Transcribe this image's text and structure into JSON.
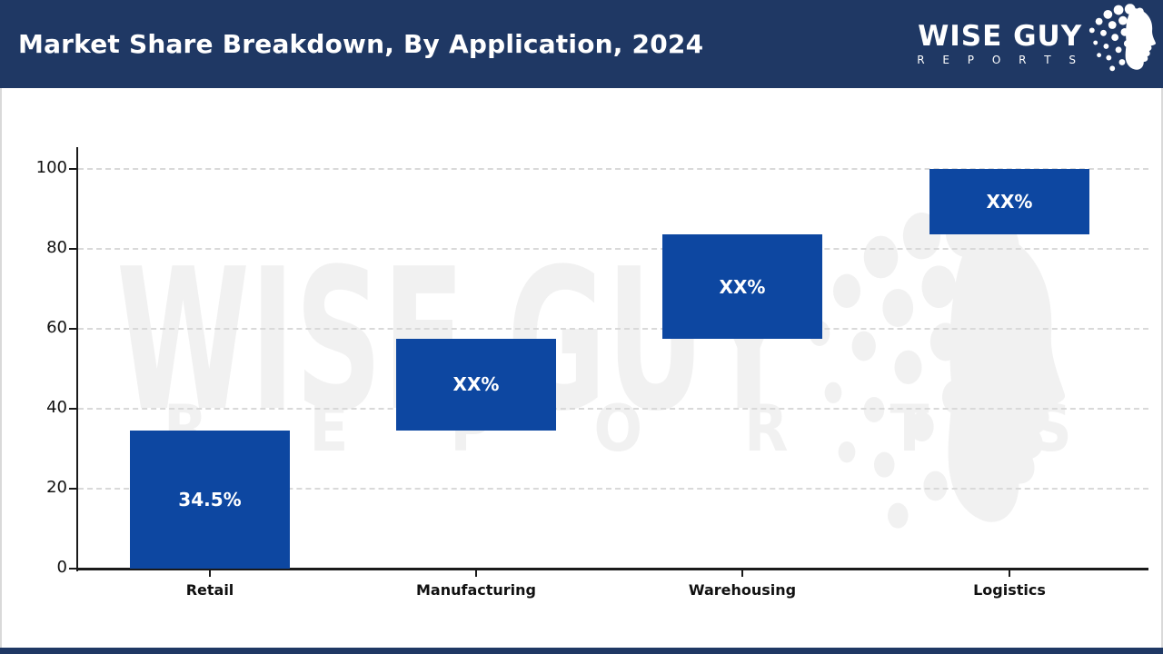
{
  "header": {
    "title": "Market Share Breakdown, By Application, 2024",
    "logo": {
      "line1": "WISE GUY",
      "line2": "R E P O R T S"
    }
  },
  "watermark": {
    "line1": "WISE GUY",
    "line2": "R E P O R T S"
  },
  "chart_data": {
    "type": "bar",
    "subtype": "floating-waterfall",
    "title": "Market Share Breakdown, By Application, 2024",
    "categories": [
      "Retail",
      "Manufacturing",
      "Warehousing",
      "Logistics"
    ],
    "segments": [
      {
        "category": "Retail",
        "start": 0,
        "end": 34.5,
        "label": "34.5%"
      },
      {
        "category": "Manufacturing",
        "start": 34.5,
        "end": 57.5,
        "label": "XX%"
      },
      {
        "category": "Warehousing",
        "start": 57.5,
        "end": 83.5,
        "label": "XX%"
      },
      {
        "category": "Logistics",
        "start": 83.5,
        "end": 100,
        "label": "XX%"
      }
    ],
    "xlabel": "",
    "ylabel": "",
    "ylim": [
      0,
      100
    ],
    "yticks": [
      0,
      20,
      40,
      60,
      80,
      100
    ],
    "grid": "horizontal-dashed",
    "legend": "none"
  },
  "colors": {
    "header_bg": "#1f3864",
    "footer_bg": "#1f3864",
    "bar": "#0d47a1",
    "bar_label": "#ffffff",
    "grid": "#d9d9d9",
    "axis": "#1a1a1a",
    "tick_text": "#111111",
    "watermark": "#f1f1f1",
    "title_text": "#ffffff"
  }
}
